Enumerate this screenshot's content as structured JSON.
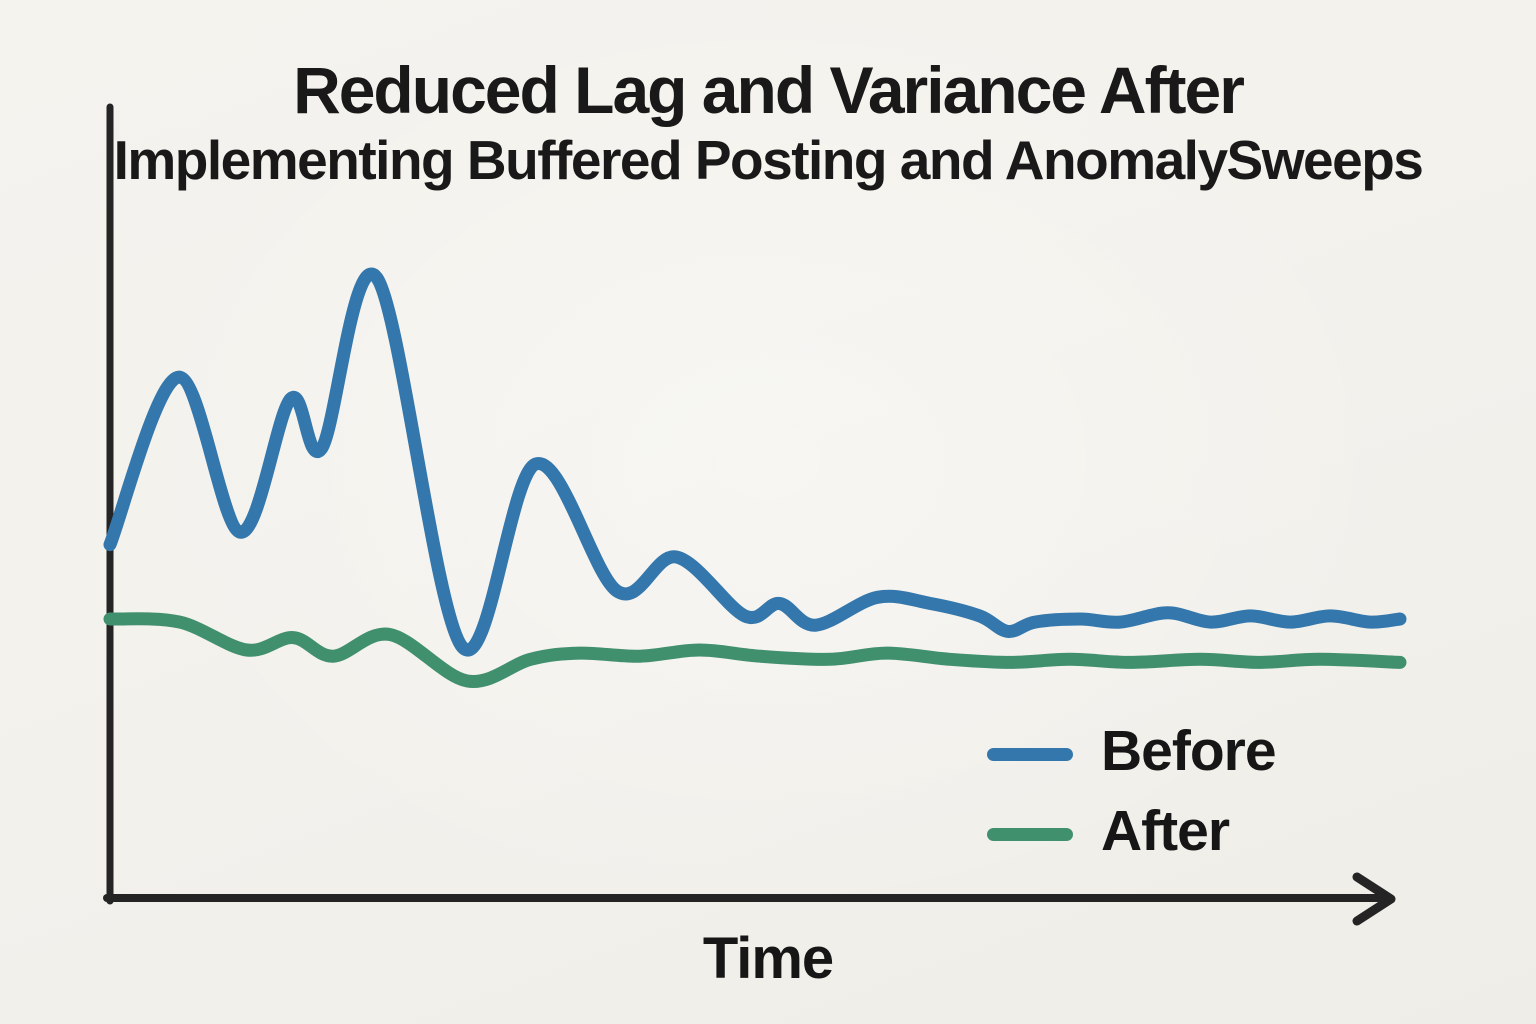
{
  "page": {
    "background": "#f4f2ed"
  },
  "title": {
    "line1": "Reduced Lag and Variance After",
    "line2": "Implementing Buffered Posting and AnomalySweeps"
  },
  "axes": {
    "x_label": "Time",
    "y_label": ""
  },
  "legend": {
    "items": [
      {
        "label": "Before",
        "color": "#3377ac"
      },
      {
        "label": "After",
        "color": "#41906d"
      }
    ]
  },
  "colors": {
    "background": "#f4f2ed",
    "axis": "#242424",
    "text": "#191919",
    "before": "#3377ac",
    "after": "#41906d"
  },
  "chart_data": {
    "type": "line",
    "title": "Reduced Lag and Variance After Implementing Buffered Posting and AnomalySweeps",
    "xlabel": "Time",
    "ylabel": "",
    "x_range": [
      0,
      100
    ],
    "y_range": [
      0,
      100
    ],
    "grid": false,
    "ticks": "none",
    "legend_position": "lower-right",
    "notes": "Conceptual sketch-style chart; axes are unlabeled, values estimated on a 0-100 relative-lag scale",
    "series": [
      {
        "name": "Before",
        "color": "#3377ac",
        "x": [
          0,
          5.3,
          10.1,
          14.0,
          16.4,
          20.7,
          27.3,
          33.0,
          39.3,
          43.9,
          49.2,
          51.9,
          54.7,
          59.5,
          63.6,
          67.4,
          69.6,
          71.7,
          75.2,
          78.3,
          82.0,
          85.3,
          88.4,
          91.5,
          94.6,
          97.7,
          100
        ],
        "y": [
          57,
          84,
          59,
          80.5,
          72.5,
          100,
          40.5,
          70,
          49.5,
          55,
          45.5,
          47.5,
          44,
          48.5,
          47.5,
          45.5,
          43,
          44.5,
          45,
          44.5,
          46,
          44.5,
          45.5,
          44.5,
          45.5,
          44.5,
          45
        ]
      },
      {
        "name": "After",
        "color": "#41906d",
        "x": [
          0,
          5.4,
          10.6,
          14.2,
          17.3,
          21.7,
          27.7,
          32.6,
          36.4,
          41.1,
          45.7,
          50.4,
          55.8,
          60.2,
          65.1,
          69.8,
          74.4,
          79.1,
          84.5,
          89.1,
          93.8,
          100
        ],
        "y": [
          45,
          44.5,
          40,
          42,
          39,
          42.5,
          35,
          38.5,
          39.5,
          39,
          40,
          39,
          38.5,
          39.5,
          38.5,
          38,
          38.5,
          38,
          38.5,
          38,
          38.5,
          38
        ]
      }
    ]
  }
}
